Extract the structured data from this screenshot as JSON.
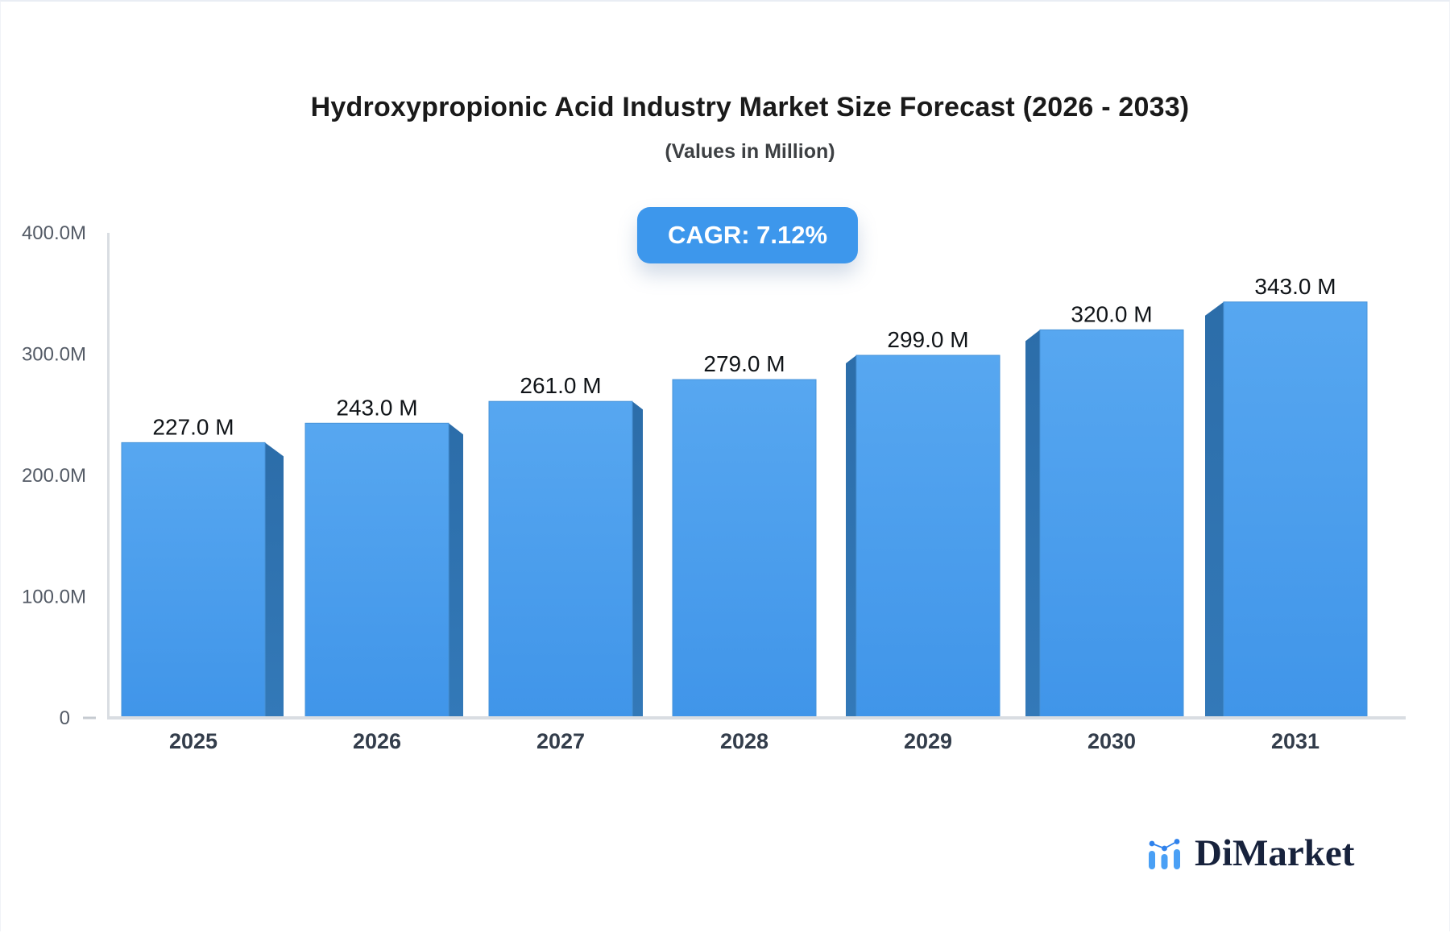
{
  "page": {
    "title": "Hydroxypropionic Acid Industry Market Size Forecast (2026 - 2033)",
    "subtitle": "(Values in Million)",
    "cagr_badge": "CAGR: 7.12%"
  },
  "chart_data": {
    "type": "bar",
    "style": "3d-perspective-bars",
    "title": "Hydroxypropionic Acid Industry Market Size Forecast (2026 - 2033)",
    "subtitle": "(Values in Million)",
    "unit": "Million",
    "cagr_percent": 7.12,
    "categories": [
      "2025",
      "2026",
      "2027",
      "2028",
      "2029",
      "2030",
      "2031"
    ],
    "values": [
      227.0,
      243.0,
      261.0,
      279.0,
      299.0,
      320.0,
      343.0
    ],
    "bar_labels": [
      "227.0 M",
      "243.0 M",
      "261.0 M",
      "279.0 M",
      "299.0 M",
      "320.0 M",
      "343.0 M"
    ],
    "xlabel": "",
    "ylabel": "",
    "ylim": [
      0,
      400
    ],
    "ytick_values": [
      100,
      200,
      300,
      400
    ],
    "ytick_labels": [
      "100.0M",
      "200.0M",
      "300.0M",
      "400.0M"
    ],
    "origin_label": "0",
    "grid": false,
    "legend": false
  },
  "colors": {
    "bar_face_top": "#57a7f0",
    "bar_face_bottom": "#4095e9",
    "bar_face_edge": "#4793d8",
    "bar_side_top": "#2c6da9",
    "bar_side_bottom": "#3379b8",
    "badge_bg": "#3d97ec",
    "badge_text": "#ffffff",
    "axis_line": "#d9dde2",
    "tick_dash": "#c6cbd1",
    "ytick_text": "#545b66",
    "xtick_text": "#333d4b",
    "bar_label_text": "#101418",
    "title_text": "#1a1a1a",
    "subtitle_text": "#3d4043",
    "logo_text": "#17223c",
    "logo_bar_blue": "#4aa0f5",
    "logo_dot_blue": "#2f82ec"
  },
  "branding": {
    "logo_text": "DiMarket",
    "logo_icon": "mini-bar-chart-with-trend-dots-icon"
  }
}
